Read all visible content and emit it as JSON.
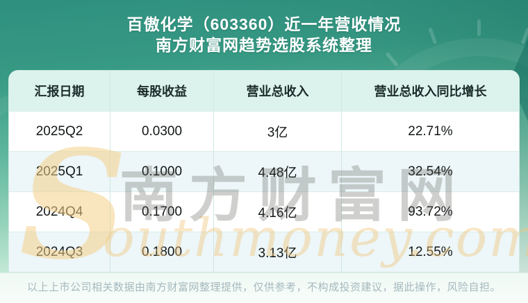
{
  "header": {
    "title": "百傲化学（603360）近一年营收情况",
    "subtitle": "南方财富网趋势选股系统整理"
  },
  "chart_data": {
    "type": "table",
    "title": "百傲化学（603360）近一年营收情况",
    "subtitle": "南方财富网趋势选股系统整理",
    "columns": [
      "汇报日期",
      "每股收益",
      "营业总收入",
      "营业总收入同比增长"
    ],
    "rows": [
      [
        "2025Q2",
        "0.0300",
        "3亿",
        "22.71%"
      ],
      [
        "2025Q1",
        "0.1000",
        "4.48亿",
        "32.54%"
      ],
      [
        "2024Q4",
        "0.1700",
        "4.16亿",
        "93.72%"
      ],
      [
        "2024Q3",
        "0.1800",
        "3.13亿",
        "12.55%"
      ]
    ]
  },
  "watermark": {
    "initial": "S",
    "latin": "outhmoney.com",
    "chinese": "南方财富网"
  },
  "footer": {
    "disclaimer": "以上上市公司相关数据由南方财富网整理提供，仅供参考，不构成投资建议，据此操作，风险自担。"
  },
  "colors": {
    "background_teal": "#2e8f7f",
    "table_header_bg": "#dcf3ed",
    "row_alt_bg": "#edf6f8",
    "divider": "#cde8e2",
    "title_text": "#ffffff",
    "watermark_gold": "#f2cd86",
    "watermark_gray": "#5f5f5c",
    "footer_text": "#a5b8be"
  }
}
